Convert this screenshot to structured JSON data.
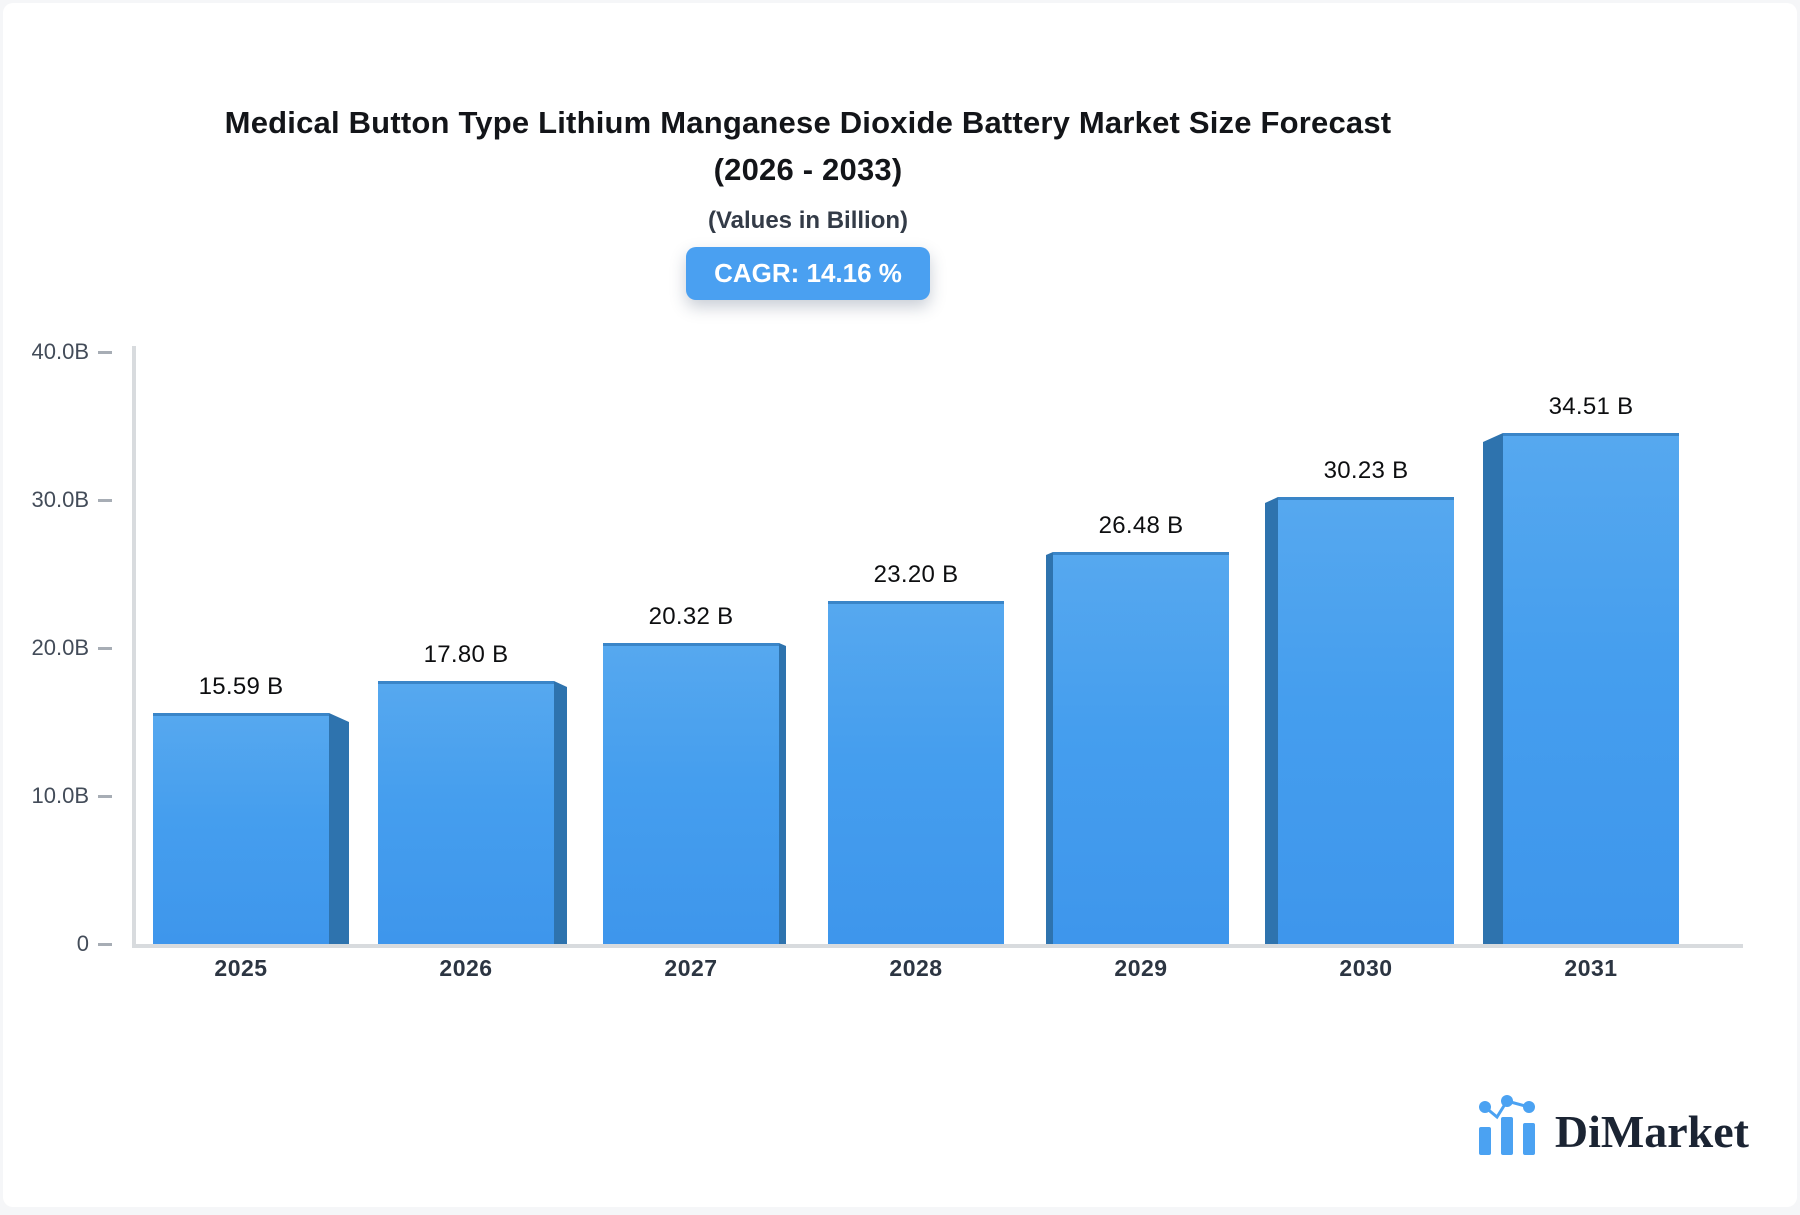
{
  "header": {
    "title_line1": "Medical Button Type Lithium Manganese Dioxide Battery Market Size Forecast",
    "title_line2": "(2026 - 2033)",
    "subtitle": "(Values in Billion)",
    "cagr_badge": "CAGR: 14.16 %"
  },
  "chart_data": {
    "type": "bar",
    "title": "Medical Button Type Lithium Manganese Dioxide Battery Market Size Forecast (2026 - 2033)",
    "units": "Values in Billion",
    "cagr_percent": 14.16,
    "categories": [
      "2025",
      "2026",
      "2027",
      "2028",
      "2029",
      "2030",
      "2031"
    ],
    "values": [
      15.59,
      17.8,
      20.32,
      23.2,
      26.48,
      30.23,
      34.51
    ],
    "bar_labels": [
      "15.59 B",
      "17.80 B",
      "20.32 B",
      "23.20 B",
      "26.48 B",
      "30.23 B",
      "34.51 B"
    ],
    "y_ticks": [
      {
        "label": "40.0B",
        "value": 40
      },
      {
        "label": "30.0B",
        "value": 30
      },
      {
        "label": "20.0B",
        "value": 20
      },
      {
        "label": "10.0B",
        "value": 10
      },
      {
        "label": "0",
        "value": 0
      }
    ],
    "ylim": [
      0,
      40
    ],
    "xlabel": "",
    "ylabel": "",
    "grid": false,
    "legend_position": "none",
    "colors": {
      "bar_face_top": "#56A8EF",
      "bar_face_bottom": "#3E96EC",
      "bar_side": "#2E73AE",
      "bar_top_edge": "#3A85C8",
      "badge_bg": "#4AA0F1",
      "axis_line": "#D8DBDE",
      "tick": "#A7ADB5",
      "logo_blue": "#4BA2F2",
      "logo_navy": "#1B2433"
    }
  },
  "branding": {
    "logo_text": "DiMarket",
    "logo_icon": "mini-bar-chart-icon"
  }
}
